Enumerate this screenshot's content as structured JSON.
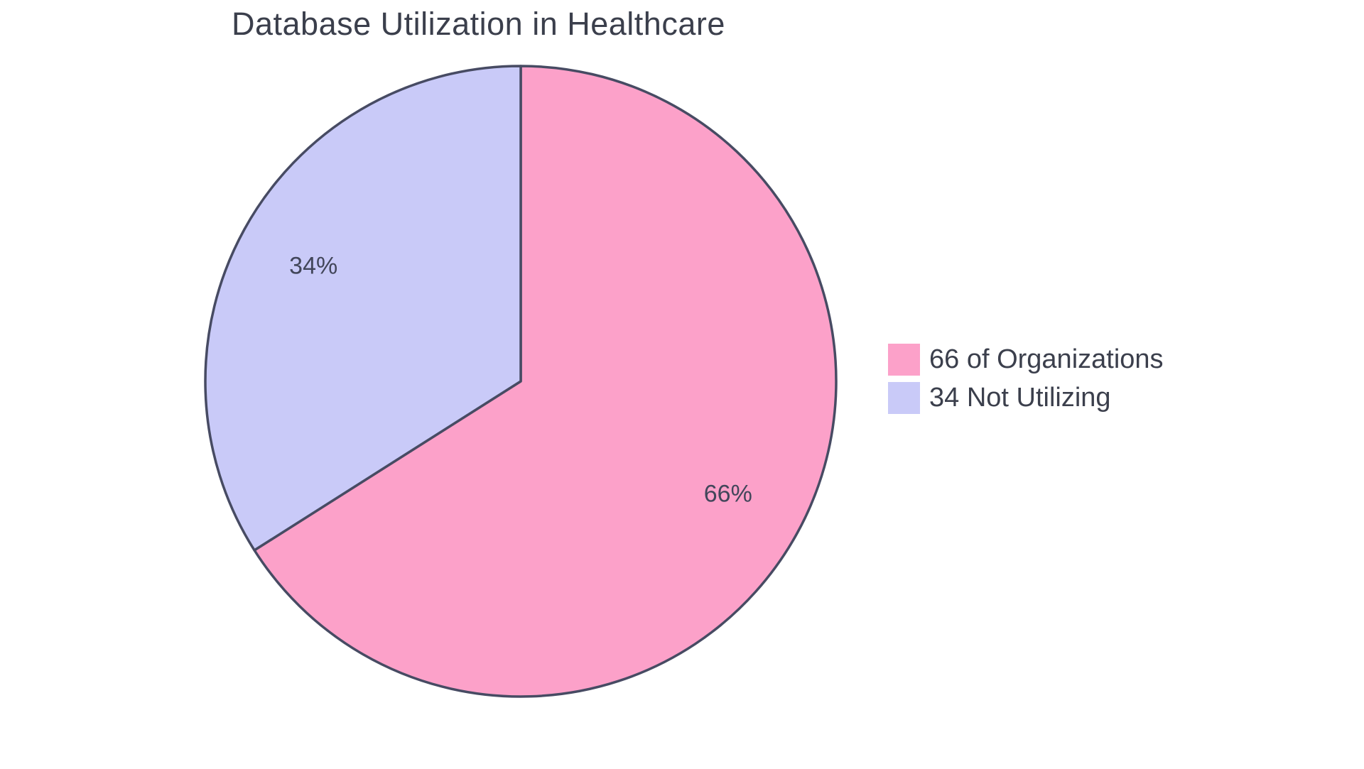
{
  "chart_data": {
    "type": "pie",
    "title": "Database Utilization in Healthcare",
    "slices": [
      {
        "legend_label": "66 of Organizations",
        "value": 66,
        "pct_label": "66%",
        "color": "#FCA1C9"
      },
      {
        "legend_label": "34 Not Utilizing",
        "value": 34,
        "pct_label": "34%",
        "color": "#C9CAF8"
      }
    ],
    "start_angle": "top",
    "direction": "clockwise",
    "legend_position": "middle-right",
    "outline_color": "#474B63",
    "label_color": "#42465A",
    "title_color": "#3B3F4C",
    "legend_text_color": "#3B3F4C",
    "background_color": "#FFFFFF"
  }
}
